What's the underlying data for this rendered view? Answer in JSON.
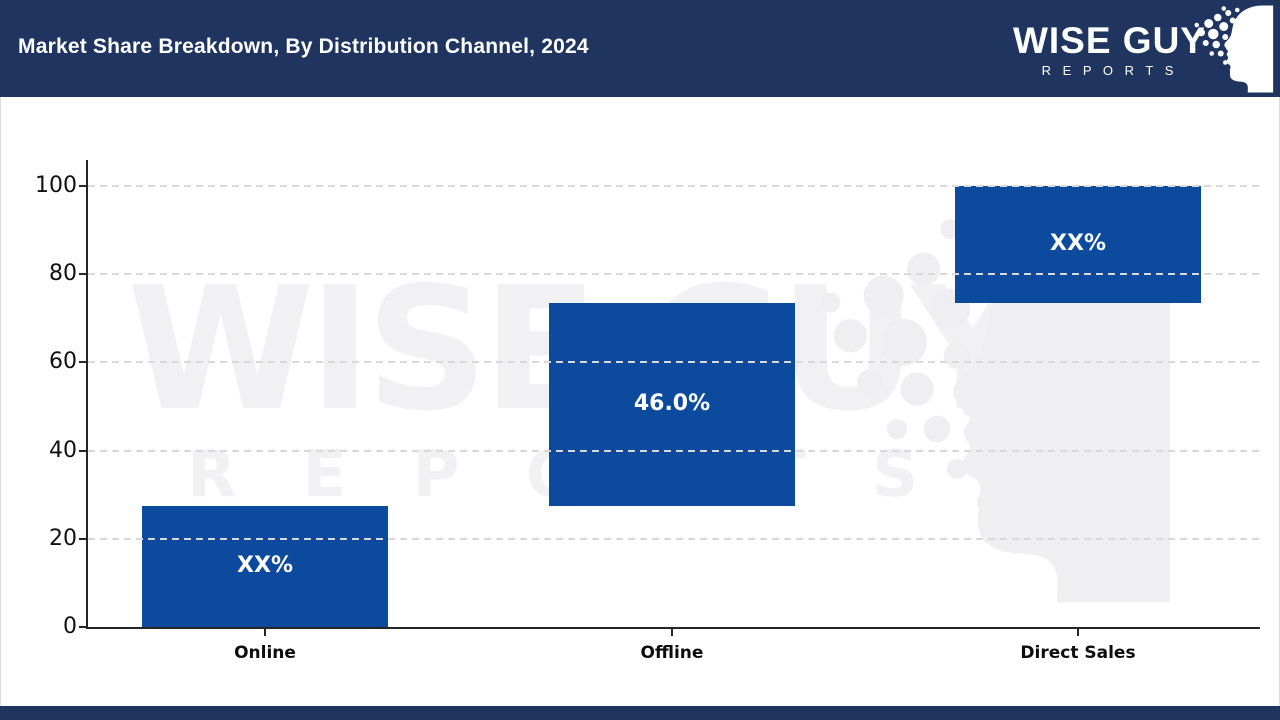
{
  "header": {
    "title": "Market Share Breakdown, By Distribution Channel, 2024",
    "logo_line1": "WISE GUY",
    "logo_line2": "R E P O R T S"
  },
  "watermark": {
    "line1": "WISE GUY",
    "line2": "R E P O R T S"
  },
  "chart_data": {
    "type": "bar",
    "subtype": "waterfall-stacked-percentage",
    "title": "Market Share Breakdown, By Distribution Channel, 2024",
    "categories": [
      "Online",
      "Offline",
      "Direct Sales"
    ],
    "series": [
      {
        "name": "Market share (%)",
        "values": [
          27.5,
          46.0,
          26.5
        ],
        "starts": [
          0,
          27.5,
          73.5
        ],
        "ends": [
          27.5,
          73.5,
          100
        ],
        "labels": [
          "XX%",
          "46.0%",
          "XX%"
        ]
      }
    ],
    "xlabel": "",
    "ylabel": "",
    "yticks": [
      0,
      20,
      40,
      60,
      80,
      100
    ],
    "ylim": [
      0,
      106
    ],
    "grid": "horizontal-dashed",
    "legend": "none",
    "bar_color": "#0c4a9e",
    "bar_label_color": "#ffffff"
  },
  "colors": {
    "header_bg": "#1f3560",
    "footer_bg": "#1f3560",
    "bar": "#0c4a9e",
    "gridline": "#d9d9d9",
    "axis": "#262626",
    "tick_text": "#111111",
    "watermark": "#f1f1f3"
  }
}
